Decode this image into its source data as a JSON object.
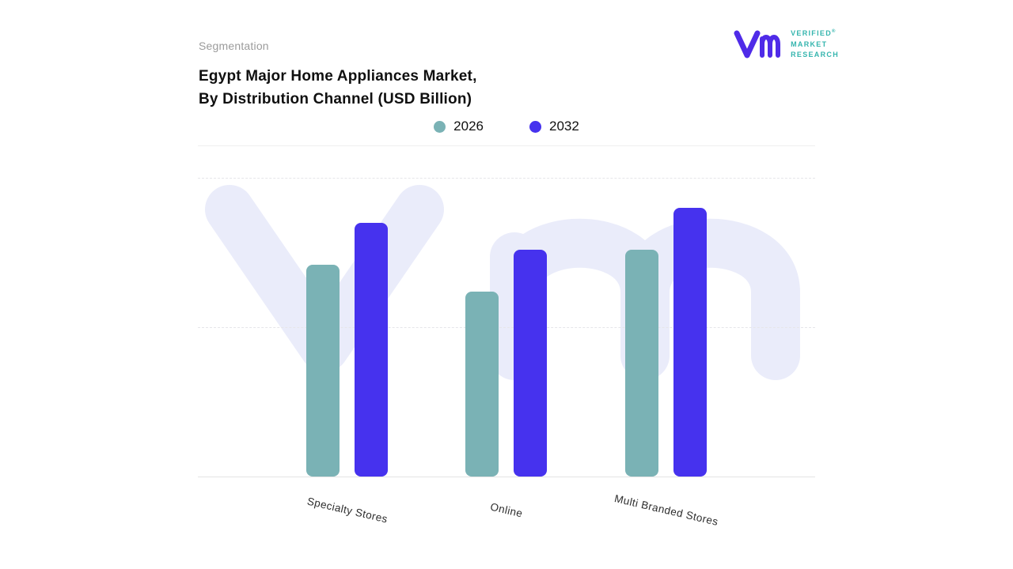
{
  "header": {
    "eyebrow": "Segmentation",
    "title_line1": "Egypt Major Home Appliances Market,",
    "title_line2": "By Distribution Channel (USD Billion)"
  },
  "logo": {
    "word1": "VERIFIED",
    "word2": "MARKET",
    "word3": "RESEARCH",
    "registered": "®",
    "monogram_color": "#4F2BE8",
    "text_color": "#35B5AE"
  },
  "chart_data": {
    "type": "bar",
    "title": "Egypt Major Home Appliances Market, By Distribution Channel (USD Billion)",
    "categories": [
      "Specialty Stores",
      "Online",
      "Multi Branded Stores"
    ],
    "series": [
      {
        "name": "2026",
        "color": "#7AB2B5",
        "values": [
          0.71,
          0.62,
          0.76
        ]
      },
      {
        "name": "2032",
        "color": "#4632EE",
        "values": [
          0.85,
          0.76,
          0.9
        ]
      }
    ],
    "xlabel": "",
    "ylabel": "",
    "ylim": [
      0,
      1
    ],
    "grid": "horizontal-dashed",
    "legend_position": "top-center",
    "note": "No numeric axis tick labels are shown; series values are estimated fractions of the plot height."
  },
  "watermark": {
    "text": "Vm",
    "color": "#EAECFA"
  }
}
